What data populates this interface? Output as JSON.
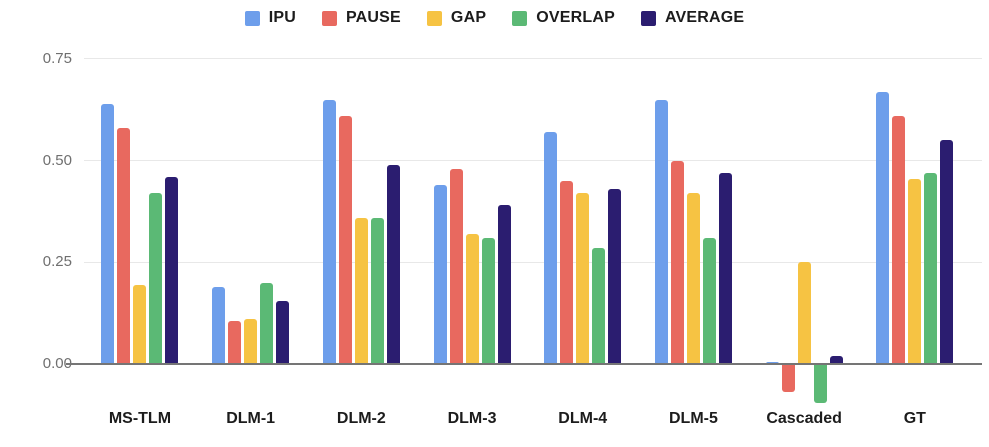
{
  "chart_data": {
    "type": "bar",
    "title": "",
    "xlabel": "",
    "ylabel": "",
    "categories": [
      "MS-TLM",
      "DLM-1",
      "DLM-2",
      "DLM-3",
      "DLM-4",
      "DLM-5",
      "Cascaded",
      "GT"
    ],
    "series": [
      {
        "name": "IPU",
        "color": "#6d9eeb",
        "values": [
          0.64,
          0.19,
          0.65,
          0.44,
          0.57,
          0.65,
          0.005,
          0.67
        ]
      },
      {
        "name": "PAUSE",
        "color": "#e8695f",
        "values": [
          0.58,
          0.105,
          0.61,
          0.48,
          0.45,
          0.5,
          -0.07,
          0.61
        ]
      },
      {
        "name": "GAP",
        "color": "#f6c343",
        "values": [
          0.195,
          0.11,
          0.36,
          0.32,
          0.42,
          0.42,
          0.25,
          0.455
        ]
      },
      {
        "name": "OVERLAP",
        "color": "#5bb975",
        "values": [
          0.42,
          0.2,
          0.36,
          0.31,
          0.285,
          0.31,
          -0.095,
          0.47
        ]
      },
      {
        "name": "AVERAGE",
        "color": "#2b1d70",
        "values": [
          0.46,
          0.155,
          0.49,
          0.39,
          0.43,
          0.47,
          0.02,
          0.55
        ]
      }
    ],
    "yticks": [
      {
        "label": "0.00",
        "value": 0.0
      },
      {
        "label": "0.25",
        "value": 0.25
      },
      {
        "label": "0.50",
        "value": 0.5
      },
      {
        "label": "0.75",
        "value": 0.75
      }
    ],
    "ylim": [
      -0.12,
      0.8
    ],
    "grid": true,
    "legend_position": "top"
  }
}
